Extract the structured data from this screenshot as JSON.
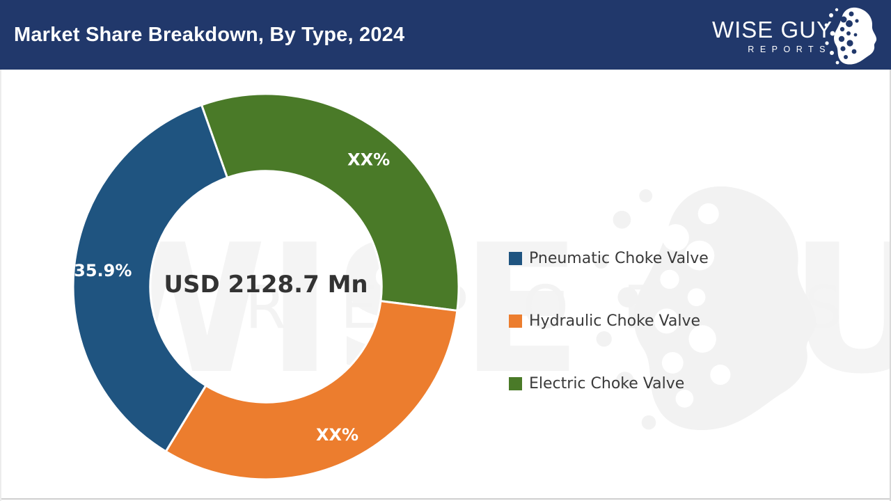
{
  "header": {
    "title": "Market Share Breakdown, By Type, 2024",
    "logo": {
      "line1": "WISE GUY",
      "line2": "REPORTS"
    }
  },
  "watermark": {
    "line1": "WISE GUY",
    "line2": "REPORTS"
  },
  "chart_data": {
    "type": "donut",
    "title": "Market Share Breakdown, By Type, 2024",
    "center_label": "USD 2128.7 Mn",
    "rotation_deg": -19.5,
    "inner_radius_ratio": 0.6,
    "legend_position": "right",
    "series": [
      {
        "name": "Electric Choke Valve",
        "value_pct": 32.4,
        "label": "XX%",
        "color": "#4A7A28"
      },
      {
        "name": "Hydraulic Choke Valve",
        "value_pct": 31.7,
        "label": "XX%",
        "color": "#EC7D2E"
      },
      {
        "name": "Pneumatic Choke Valve",
        "value_pct": 35.9,
        "label": "35.9%",
        "color": "#1F5480"
      }
    ]
  },
  "legend": {
    "items": [
      {
        "label": "Pneumatic Choke Valve",
        "color": "#1F5480"
      },
      {
        "label": "Hydraulic Choke Valve",
        "color": "#EC7D2E"
      },
      {
        "label": "Electric Choke Valve",
        "color": "#4A7A28"
      }
    ]
  },
  "colors": {
    "header_bg": "#21386B",
    "center_text": "#333333",
    "slice_label": "#FFFFFF",
    "watermark": "#F2F2F2"
  }
}
